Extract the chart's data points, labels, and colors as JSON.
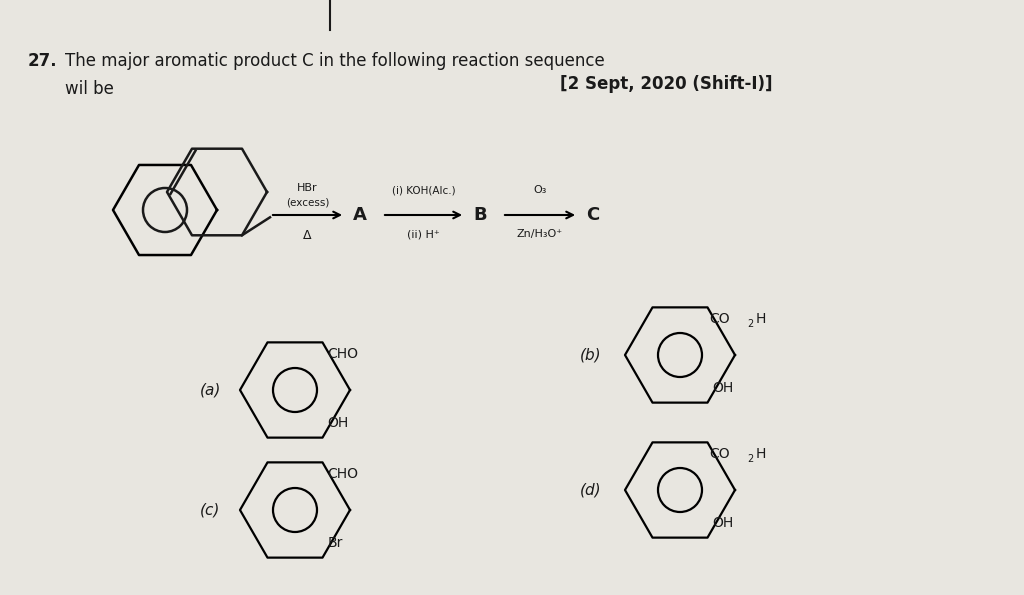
{
  "title_number": "27.",
  "title_text": "The major aromatic product C in the following reaction sequence",
  "title_text2": "[2 Sept, 2020 (Shift-I)]",
  "subtitle": "wil be",
  "bg_color": "#e8e6e0",
  "text_color": "#1a1a1a",
  "reaction_arrow1_label_top": "HBr",
  "reaction_arrow1_label_mid": "(excess)",
  "reaction_arrow1_label_bot": "Δ",
  "reaction_arrow2_label_top": "(i) KOH(Alc.)",
  "reaction_arrow2_label_bot": "(ii) H⁺",
  "reaction_arrow3_label_top": "O₃",
  "reaction_arrow3_label_bot": "Zn/H₃O⁺",
  "label_A": "A",
  "label_B": "B",
  "label_C": "C",
  "option_a": "(a)",
  "option_b": "(b)",
  "option_c": "(c)",
  "option_d": "(d)"
}
